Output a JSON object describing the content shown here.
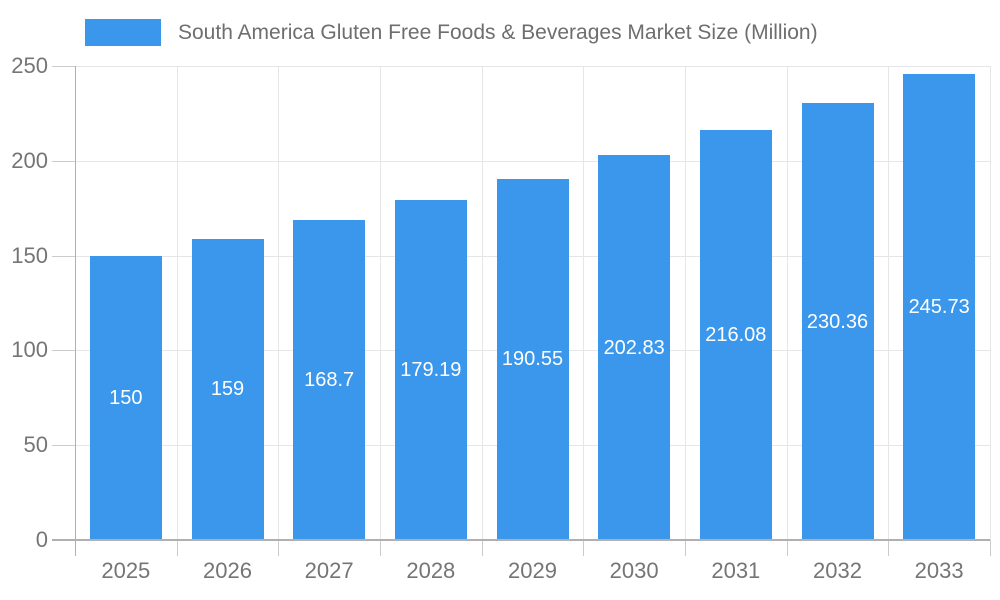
{
  "legend": {
    "series_label": "South America Gluten Free Foods & Beverages Market Size (Million)"
  },
  "chart_data": {
    "type": "bar",
    "title": "South America Gluten Free Foods & Beverages Market Size (Million)",
    "categories": [
      "2025",
      "2026",
      "2027",
      "2028",
      "2029",
      "2030",
      "2031",
      "2032",
      "2033"
    ],
    "values": [
      150,
      159,
      168.7,
      179.19,
      190.55,
      202.83,
      216.08,
      230.36,
      245.73
    ],
    "value_labels": [
      "150",
      "159",
      "168.7",
      "179.19",
      "190.55",
      "202.83",
      "216.08",
      "230.36",
      "245.73"
    ],
    "xlabel": "",
    "ylabel": "",
    "ylim": [
      0,
      250
    ],
    "yticks": [
      0,
      50,
      100,
      150,
      200,
      250
    ],
    "grid": true,
    "legend_position": "top-left",
    "colors": {
      "bar": "#3b97eb",
      "bar_label": "#ffffff",
      "grid_line": "#e6e6e6",
      "tick_line": "#cccccc",
      "axis_line": "#b0b0b0",
      "axis_text": "#757575",
      "title_text": "#6e6e6e",
      "background": "#ffffff"
    }
  }
}
